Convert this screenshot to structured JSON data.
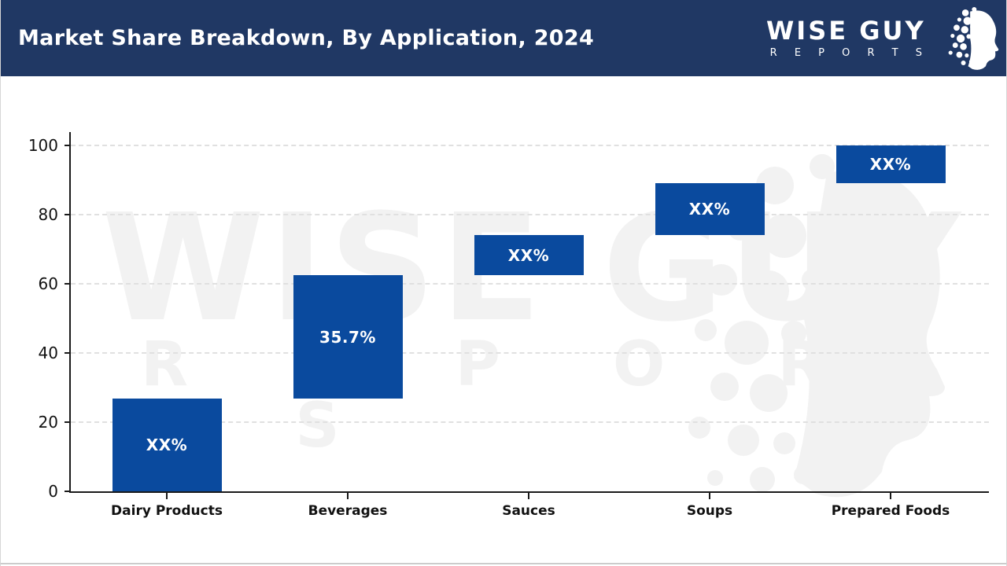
{
  "header": {
    "title": "Market Share Breakdown, By Application, 2024",
    "background_color": "#203864",
    "brand": {
      "line1": "WISE GUY",
      "line2": "R E P O R T S"
    }
  },
  "watermark": {
    "line1": "WISE GUY",
    "line2": "R E P O R T S"
  },
  "chart_data": {
    "type": "bar",
    "subtype": "waterfall-floating-bars",
    "title": "Market Share Breakdown, By Application, 2024",
    "categories": [
      "Dairy Products",
      "Beverages",
      "Sauces",
      "Soups",
      "Prepared Foods"
    ],
    "segments": [
      {
        "category": "Dairy Products",
        "start": 0,
        "end": 26.8,
        "label": "XX%"
      },
      {
        "category": "Beverages",
        "start": 26.8,
        "end": 62.5,
        "label": "35.7%"
      },
      {
        "category": "Sauces",
        "start": 62.5,
        "end": 74.0,
        "label": "XX%"
      },
      {
        "category": "Soups",
        "start": 74.0,
        "end": 89.0,
        "label": "XX%"
      },
      {
        "category": "Prepared Foods",
        "start": 89.0,
        "end": 100.0,
        "label": "XX%"
      }
    ],
    "xlabel": "",
    "ylabel": "",
    "ylim": [
      0,
      100
    ],
    "yticks": [
      0,
      20,
      40,
      60,
      80,
      100
    ],
    "grid": "horizontal-dashed",
    "legend": "none",
    "bar_color": "#0a4a9e",
    "bar_label_color": "#ffffff"
  }
}
